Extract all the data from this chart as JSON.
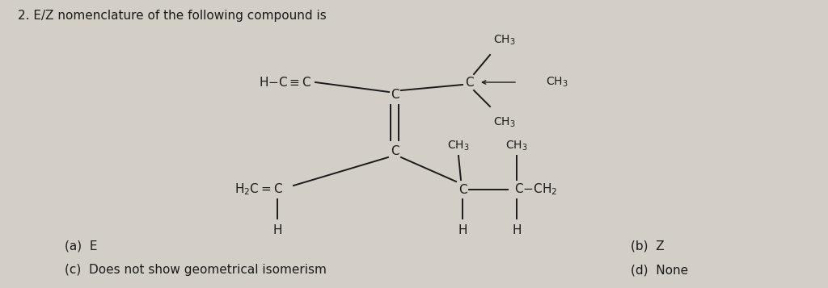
{
  "title": "2. E/Z nomenclature of the following compound is",
  "bg_color": "#d4cfc6",
  "text_color": "#1a1a1a",
  "options": {
    "a": "(a)  E",
    "b": "(b)  Z",
    "c": "(c)  Does not show geometrical isomerism",
    "d": "(d)  None"
  },
  "lw": 1.4,
  "fs": 11,
  "fs_small": 10
}
